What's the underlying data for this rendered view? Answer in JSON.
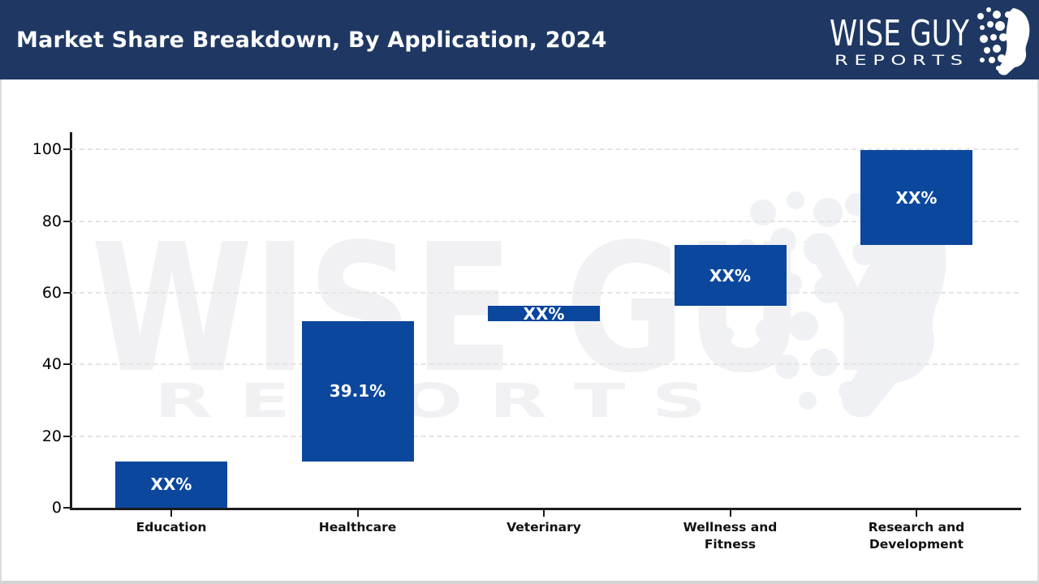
{
  "header": {
    "title": "Market Share Breakdown, By Application, 2024",
    "logo_line1": "WISE GUY",
    "logo_line2": "R E P O R T S"
  },
  "watermark": {
    "line1": "WISE GUY",
    "line2": "R E P O R T S"
  },
  "colors": {
    "header_bg": "#1f3863",
    "bar": "#0b479d",
    "axis": "#1c1c1c",
    "grid": "#e4e4e4",
    "watermark": "#f1f1f4"
  },
  "chart_data": {
    "type": "bar",
    "variant": "waterfall",
    "title": "Market Share Breakdown, By Application, 2024",
    "categories": [
      "Education",
      "Healthcare",
      "Veterinary",
      "Wellness and Fitness",
      "Research and Development"
    ],
    "bars": [
      {
        "category": "Education",
        "label": "XX%",
        "start": 0,
        "end": 13.0
      },
      {
        "category": "Healthcare",
        "label": "39.1%",
        "start": 13.0,
        "end": 52.1
      },
      {
        "category": "Veterinary",
        "label": "XX%",
        "start": 52.1,
        "end": 56.3
      },
      {
        "category": "Wellness and Fitness",
        "label": "XX%",
        "start": 56.3,
        "end": 73.3
      },
      {
        "category": "Research and Development",
        "label": "XX%",
        "start": 73.3,
        "end": 99.8
      }
    ],
    "ylim": [
      0,
      104.8
    ],
    "yticks": [
      0,
      20,
      40,
      60,
      80,
      100
    ],
    "xlabel": "",
    "ylabel": "",
    "grid": "dashed-horizontal",
    "legend": "none",
    "bar_color": "#0b479d"
  }
}
